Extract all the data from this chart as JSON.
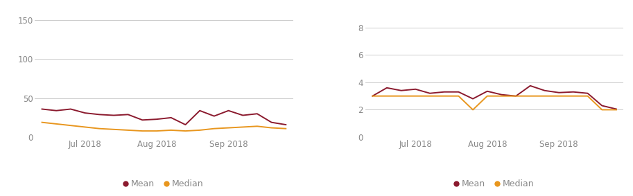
{
  "chart1": {
    "mean": [
      36,
      34,
      36,
      31,
      29,
      28,
      29,
      22,
      23,
      25,
      16,
      34,
      27,
      34,
      28,
      30,
      19,
      16
    ],
    "median": [
      19,
      17,
      15,
      13,
      11,
      10,
      9,
      8,
      8,
      9,
      8,
      9,
      11,
      12,
      13,
      14,
      12,
      11
    ],
    "yticks": [
      0,
      50,
      100,
      150
    ],
    "ylim": [
      0,
      158
    ]
  },
  "chart2": {
    "mean": [
      3.0,
      3.6,
      3.4,
      3.5,
      3.2,
      3.3,
      3.3,
      2.8,
      3.35,
      3.1,
      3.0,
      3.75,
      3.4,
      3.25,
      3.3,
      3.2,
      2.3,
      2.05
    ],
    "median": [
      3.0,
      3.0,
      3.0,
      3.0,
      3.0,
      3.0,
      3.0,
      2.0,
      3.0,
      3.0,
      3.0,
      3.0,
      3.0,
      3.0,
      3.0,
      3.0,
      2.0,
      2.0
    ],
    "yticks": [
      0,
      2,
      4,
      6,
      8
    ],
    "ylim": [
      0,
      9.0
    ]
  },
  "n_points": 18,
  "xtick_positions": [
    3,
    8,
    13
  ],
  "xtick_labels": [
    "Jul 2018",
    "Aug 2018",
    "Sep 2018"
  ],
  "mean_color": "#8B1A2E",
  "median_color": "#E8961E",
  "line_width": 1.4,
  "grid_color": "#CCCCCC",
  "bg_color": "#FFFFFF",
  "legend_mean": "Mean",
  "legend_median": "Median",
  "font_color": "#888888",
  "font_size": 8.5,
  "legend_fontsize": 9
}
